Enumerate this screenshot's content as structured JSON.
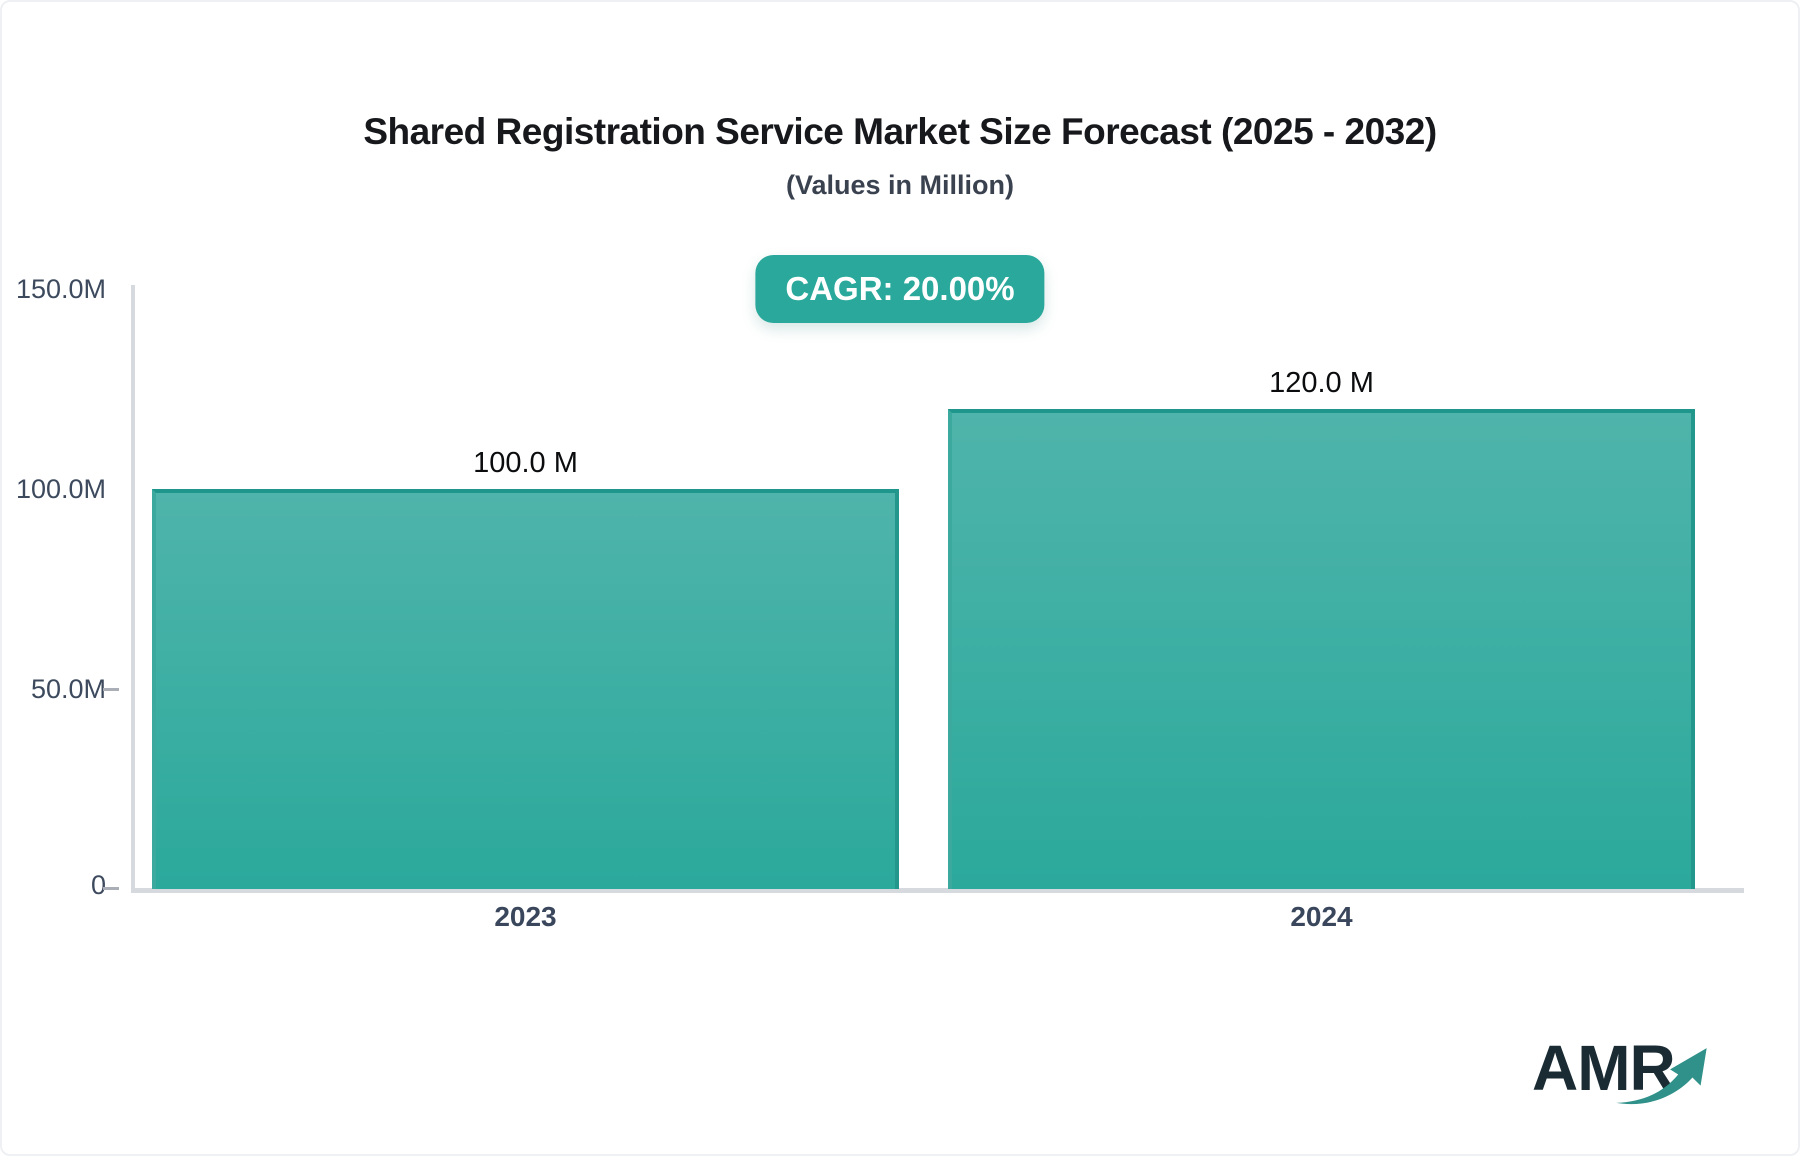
{
  "header": {
    "title": "Shared Registration Service Market Size Forecast (2025 - 2032)",
    "subtitle": "(Values in Million)",
    "cagr_badge": "CAGR: 20.00%"
  },
  "chart_data": {
    "type": "bar",
    "title": "Shared Registration Service Market Size Forecast (2025 - 2032)",
    "subtitle": "(Values in Million)",
    "cagr_percent": 20.0,
    "categories": [
      "2023",
      "2024"
    ],
    "values": [
      100.0,
      120.0
    ],
    "value_labels": [
      "100.0 M",
      "120.0 M"
    ],
    "unit": "Million",
    "ylim": [
      0,
      150
    ],
    "ytick_labels": [
      "150.0M",
      "100.0M",
      "50.0M",
      "0"
    ],
    "grid": false,
    "legend": false,
    "bar_gradient_top": "#4fb4ab",
    "bar_gradient_bottom": "#2ba99b",
    "accent_color": "#2aa89b",
    "axis_color": "#d6d9de"
  },
  "logo": {
    "text": "AMR",
    "arrow_icon": "trend-up-arrow"
  }
}
